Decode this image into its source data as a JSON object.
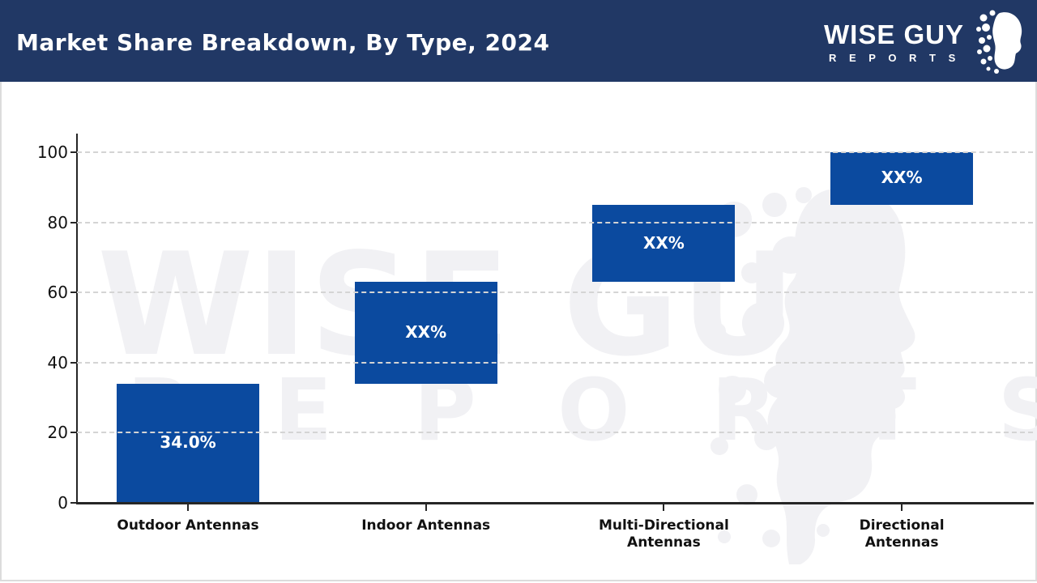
{
  "header": {
    "title": "Market Share Breakdown, By Type, 2024",
    "logo": {
      "wordmark": "WISE GUY",
      "subtext": "R E P O R T S"
    }
  },
  "watermark": {
    "wordmark": "WISE GUY",
    "subtext": "R E P O R T S"
  },
  "chart_data": {
    "type": "bar",
    "subtype": "waterfall-floating-bars",
    "title": "Market Share Breakdown, By Type, 2024",
    "categories": [
      "Outdoor Antennas",
      "Indoor Antennas",
      "Multi-Directional\nAntennas",
      "Directional\nAntennas"
    ],
    "series": [
      {
        "name": "Market Share %",
        "segments": [
          {
            "category": "Outdoor Antennas",
            "start": 0,
            "end": 34,
            "label": "34.0%"
          },
          {
            "category": "Indoor Antennas",
            "start": 34,
            "end": 63,
            "label": "XX%"
          },
          {
            "category": "Multi-Directional Antennas",
            "start": 63,
            "end": 85,
            "label": "XX%"
          },
          {
            "category": "Directional Antennas",
            "start": 85,
            "end": 100,
            "label": "XX%"
          }
        ]
      }
    ],
    "xlabel": "",
    "ylabel": "",
    "ylim": [
      0,
      100
    ],
    "yticks": [
      0,
      20,
      40,
      60,
      80,
      100
    ],
    "grid": "horizontal dashed gridlines drawn above bars",
    "legend": "none",
    "colors": {
      "bar": "#0b4a9f",
      "bar_label": "#ffffff",
      "header_bg": "#213865",
      "grid": "#d4d4d4",
      "axis": "#262626",
      "watermark": "#f1f1f4"
    }
  }
}
